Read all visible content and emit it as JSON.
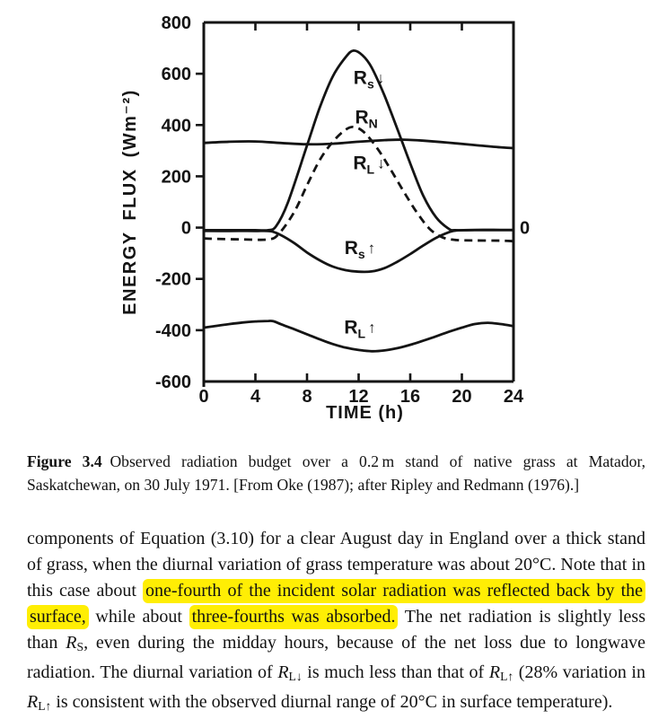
{
  "colors": {
    "ink": "#141414",
    "highlight": "#ffee04",
    "background": "#ffffff"
  },
  "figure": {
    "caption_segments": [
      {
        "t": "Figure 3.4",
        "b": true
      },
      {
        "t": " Observed radiation budget over a 0.2 m stand of native grass at Matador, Saskatchewan, on 30 July 1971. [From Oke (1987); after Ripley and Redmann (1976).]"
      }
    ]
  },
  "paragraph": {
    "segments": [
      {
        "t": "components of Equation (3.10) for a clear August day in England over a thick stand of grass, when the diurnal variation of grass temperature was about 20°C. Note that in this case about "
      },
      {
        "t": "one-fourth of the incident solar radiation was reflected back by the surface,",
        "hl": true
      },
      {
        "t": " while about "
      },
      {
        "t": "three-fourths was absorbed.",
        "hl": true
      },
      {
        "t": " The net radiation is slightly less than "
      },
      {
        "t": "R",
        "it": true
      },
      {
        "t": "S",
        "sub": true
      },
      {
        "t": ", even during the midday hours, because of the net loss due to longwave radiation. The diurnal variation of "
      },
      {
        "t": "R",
        "it": true
      },
      {
        "t": "L↓",
        "sub": true
      },
      {
        "t": " is much less than that of "
      },
      {
        "t": "R",
        "it": true
      },
      {
        "t": "L↑",
        "sub": true
      },
      {
        "t": " (28% variation in "
      },
      {
        "t": "R",
        "it": true
      },
      {
        "t": "L↑",
        "sub": true
      },
      {
        "t": " is consistent with the observed diurnal range of 20°C in surface temperature)."
      }
    ]
  },
  "chart_data": {
    "type": "line",
    "title": "",
    "xlabel": "TIME (h)",
    "ylabel": "ENERGY FLUX (Wm⁻²)",
    "xlim": [
      0,
      24
    ],
    "ylim": [
      -600,
      800
    ],
    "xticks": [
      0,
      4,
      8,
      12,
      16,
      20,
      24
    ],
    "yticks": [
      800,
      600,
      400,
      200,
      0,
      -200,
      -400,
      -600
    ],
    "right_zero_label": "0",
    "grid": false,
    "legend": "inline-curve-labels",
    "series": [
      {
        "name": "RS-down",
        "label": {
          "main": "R",
          "sub": "s",
          "arrow": "↓"
        },
        "label_pos": {
          "t": 12.8,
          "v": 585
        },
        "dashed": false,
        "points": [
          [
            0,
            -10
          ],
          [
            2,
            -10
          ],
          [
            4,
            -10
          ],
          [
            5,
            -10
          ],
          [
            5.6,
            5
          ],
          [
            6.5,
            95
          ],
          [
            8,
            320
          ],
          [
            9,
            470
          ],
          [
            10,
            590
          ],
          [
            11,
            665
          ],
          [
            11.6,
            690
          ],
          [
            12.3,
            672
          ],
          [
            13,
            625
          ],
          [
            14,
            515
          ],
          [
            15,
            385
          ],
          [
            16,
            250
          ],
          [
            17,
            125
          ],
          [
            18,
            40
          ],
          [
            19,
            -5
          ],
          [
            19.5,
            -10
          ],
          [
            21,
            -10
          ],
          [
            23,
            -10
          ],
          [
            24,
            -10
          ]
        ]
      },
      {
        "name": "RN",
        "label": {
          "main": "R",
          "sub": "N",
          "arrow": ""
        },
        "label_pos": {
          "t": 12.6,
          "v": 430
        },
        "dashed": true,
        "points": [
          [
            0,
            -42
          ],
          [
            1,
            -44
          ],
          [
            3,
            -46
          ],
          [
            5,
            -46
          ],
          [
            5.8,
            -25
          ],
          [
            7,
            60
          ],
          [
            8,
            165
          ],
          [
            9,
            265
          ],
          [
            10,
            335
          ],
          [
            11,
            382
          ],
          [
            11.7,
            392
          ],
          [
            12.5,
            368
          ],
          [
            13.5,
            305
          ],
          [
            14.5,
            225
          ],
          [
            15.5,
            140
          ],
          [
            16.5,
            60
          ],
          [
            17.5,
            -5
          ],
          [
            18.5,
            -38
          ],
          [
            19.5,
            -48
          ],
          [
            21,
            -50
          ],
          [
            23,
            -51
          ],
          [
            24,
            -53
          ]
        ]
      },
      {
        "name": "RL-down",
        "label": {
          "main": "R",
          "sub": "L",
          "arrow": "↓"
        },
        "label_pos": {
          "t": 12.8,
          "v": 252
        },
        "dashed": false,
        "points": [
          [
            0,
            330
          ],
          [
            2,
            335
          ],
          [
            4,
            336
          ],
          [
            6,
            330
          ],
          [
            8,
            325
          ],
          [
            10,
            327
          ],
          [
            12,
            335
          ],
          [
            14,
            341
          ],
          [
            15.5,
            343
          ],
          [
            17,
            339
          ],
          [
            19,
            331
          ],
          [
            21,
            322
          ],
          [
            23,
            313
          ],
          [
            24,
            310
          ]
        ]
      },
      {
        "name": "RS-up",
        "label": {
          "main": "R",
          "sub": "s",
          "arrow": "↑"
        },
        "label_pos": {
          "t": 12.1,
          "v": -78
        },
        "dashed": false,
        "points": [
          [
            0,
            -13
          ],
          [
            2,
            -13
          ],
          [
            4,
            -13
          ],
          [
            5.2,
            -14
          ],
          [
            6,
            -30
          ],
          [
            7,
            -60
          ],
          [
            8,
            -97
          ],
          [
            9,
            -128
          ],
          [
            10,
            -152
          ],
          [
            11,
            -166
          ],
          [
            12,
            -172
          ],
          [
            13,
            -171
          ],
          [
            14,
            -158
          ],
          [
            15,
            -133
          ],
          [
            16,
            -103
          ],
          [
            17,
            -70
          ],
          [
            18,
            -40
          ],
          [
            19,
            -18
          ],
          [
            19.6,
            -11
          ],
          [
            21,
            -9
          ],
          [
            23,
            -9
          ],
          [
            24,
            -9
          ]
        ]
      },
      {
        "name": "RL-up",
        "label": {
          "main": "R",
          "sub": "L",
          "arrow": "↑"
        },
        "label_pos": {
          "t": 12.1,
          "v": -388
        },
        "dashed": false,
        "points": [
          [
            0,
            -390
          ],
          [
            1,
            -383
          ],
          [
            2,
            -376
          ],
          [
            3,
            -370
          ],
          [
            4,
            -366
          ],
          [
            5,
            -364
          ],
          [
            5.4,
            -365
          ],
          [
            6,
            -377
          ],
          [
            7,
            -396
          ],
          [
            8,
            -416
          ],
          [
            9,
            -436
          ],
          [
            10,
            -454
          ],
          [
            11,
            -468
          ],
          [
            12,
            -477
          ],
          [
            13,
            -482
          ],
          [
            14,
            -479
          ],
          [
            15,
            -470
          ],
          [
            16,
            -457
          ],
          [
            17,
            -441
          ],
          [
            18,
            -424
          ],
          [
            19,
            -406
          ],
          [
            20,
            -390
          ],
          [
            21,
            -376
          ],
          [
            22,
            -371
          ],
          [
            23,
            -376
          ],
          [
            24,
            -384
          ]
        ]
      }
    ]
  }
}
